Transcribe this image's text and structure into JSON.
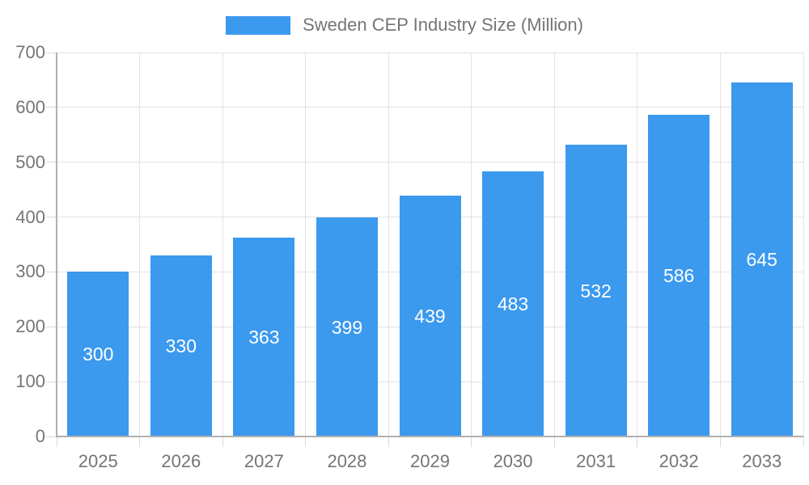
{
  "legend": {
    "label": "Sweden CEP Industry Size (Million)"
  },
  "chart_data": {
    "type": "bar",
    "title": "Sweden CEP Industry Size (Million)",
    "categories": [
      "2025",
      "2026",
      "2027",
      "2028",
      "2029",
      "2030",
      "2031",
      "2032",
      "2033"
    ],
    "values": [
      300,
      330,
      363,
      399,
      439,
      483,
      532,
      586,
      645
    ],
    "xlabel": "",
    "ylabel": "",
    "ylim": [
      0,
      700
    ],
    "yticks": [
      0,
      100,
      200,
      300,
      400,
      500,
      600,
      700
    ],
    "grid": true,
    "legend_position": "top-center",
    "bar_color": "#3b99ee",
    "value_label_color": "#ffffff",
    "axis_text_color": "#757575",
    "gridline_color": "#e3e3e3",
    "axis_line_color": "#b0b0b0"
  }
}
